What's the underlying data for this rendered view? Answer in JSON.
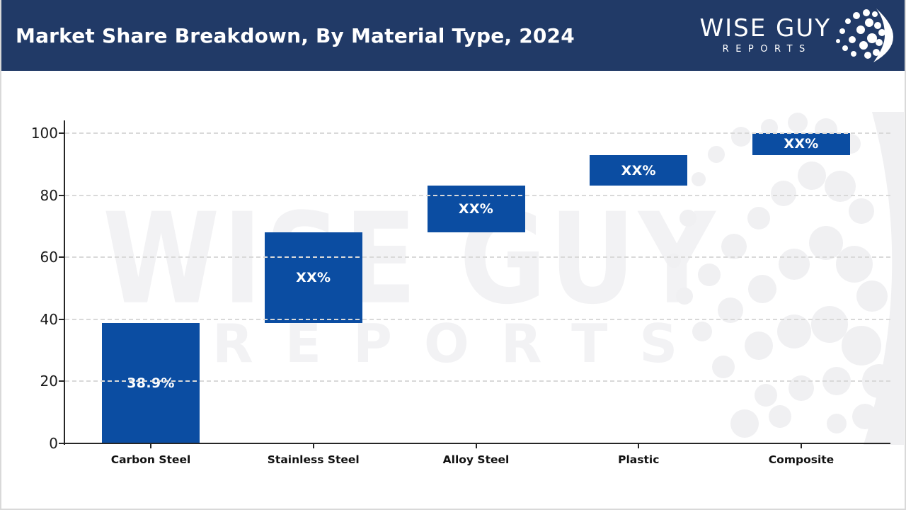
{
  "header": {
    "title": "Market Share Breakdown, By Material Type, 2024",
    "logo": {
      "line1": "WISE GUY",
      "line2": "REPORTS"
    }
  },
  "watermark": {
    "line1": "WISE GUY",
    "line2": "REPORTS"
  },
  "colors": {
    "header_bg": "#213a67",
    "bar": "#0b4da2",
    "grid": "#d9d9d9",
    "axis": "#262626",
    "bar_label": "#ffffff",
    "watermark": "#f2f2f4"
  },
  "chart_data": {
    "type": "bar",
    "subtype": "waterfall",
    "title": "Market Share Breakdown, By Material Type, 2024",
    "categories": [
      "Carbon Steel",
      "Stainless Steel",
      "Alloy Steel",
      "Plastic",
      "Composite"
    ],
    "bars": [
      {
        "category": "Carbon Steel",
        "start": 0,
        "end": 38.9,
        "label": "38.9%"
      },
      {
        "category": "Stainless Steel",
        "start": 38.9,
        "end": 68,
        "label": "XX%"
      },
      {
        "category": "Alloy Steel",
        "start": 68,
        "end": 83,
        "label": "XX%"
      },
      {
        "category": "Plastic",
        "start": 83,
        "end": 93,
        "label": "XX%"
      },
      {
        "category": "Composite",
        "start": 93,
        "end": 100,
        "label": "XX%"
      }
    ],
    "yticks": [
      0,
      20,
      40,
      60,
      80,
      100
    ],
    "ylim": [
      0,
      104
    ],
    "xlabel": "",
    "ylabel": "",
    "grid": "horizontal-dashed-over-bars",
    "legend": "none",
    "bar_color": "#0b4da2",
    "value_label_color": "#ffffff"
  }
}
